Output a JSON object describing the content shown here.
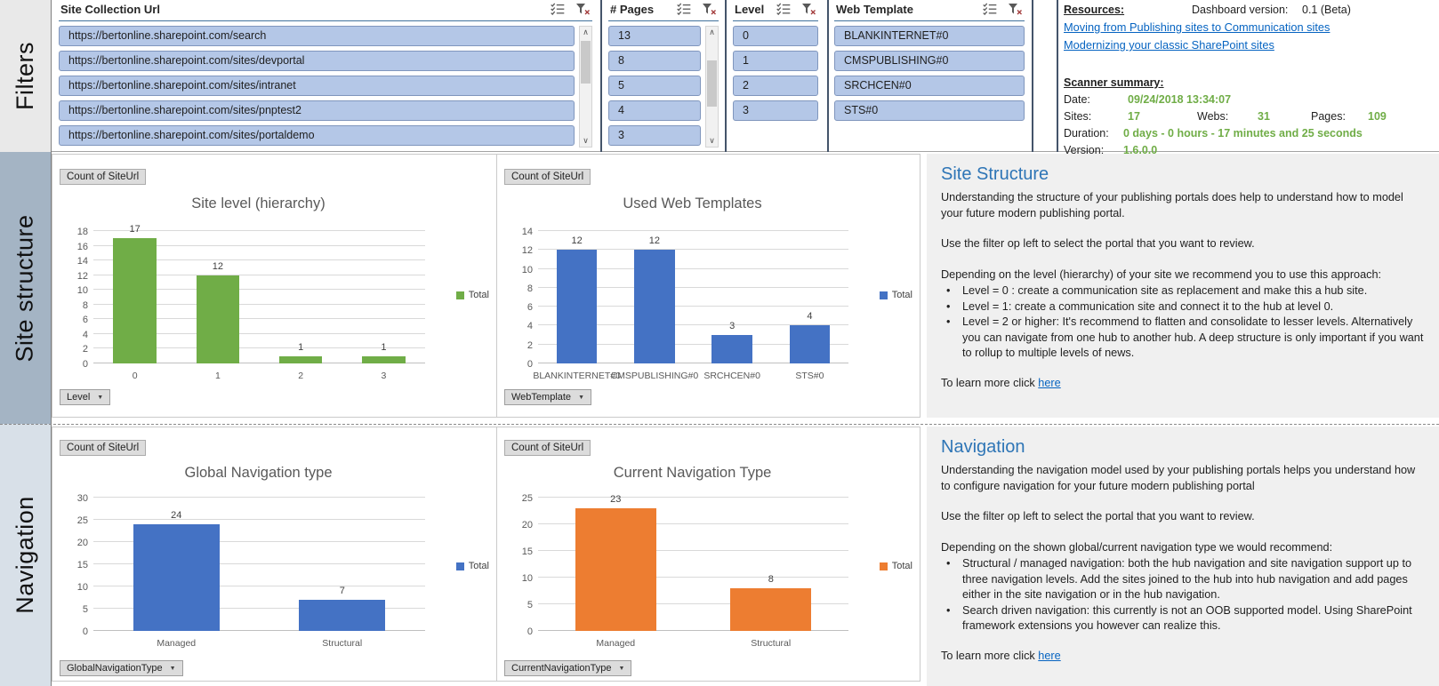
{
  "sidebar": {
    "sections": [
      {
        "label": "Filters"
      },
      {
        "label": "Site structure"
      },
      {
        "label": "Navigation"
      }
    ]
  },
  "filters": {
    "slicers": [
      {
        "title": "Site Collection Url",
        "items": [
          "https://bertonline.sharepoint.com/search",
          "https://bertonline.sharepoint.com/sites/devportal",
          "https://bertonline.sharepoint.com/sites/intranet",
          "https://bertonline.sharepoint.com/sites/pnptest2",
          "https://bertonline.sharepoint.com/sites/portaldemo"
        ],
        "scrollbar": true
      },
      {
        "title": "# Pages",
        "items": [
          "13",
          "8",
          "5",
          "4",
          "3"
        ],
        "scrollbar": true
      },
      {
        "title": "Level",
        "items": [
          "0",
          "1",
          "2",
          "3"
        ],
        "scrollbar": false
      },
      {
        "title": "Web Template",
        "items": [
          "BLANKINTERNET#0",
          "CMSPUBLISHING#0",
          "SRCHCEN#0",
          "STS#0"
        ],
        "scrollbar": false
      }
    ]
  },
  "resources": {
    "heading": "Resources:",
    "dashboard_version_label": "Dashboard version:",
    "dashboard_version": "0.1 (Beta)",
    "links": [
      "Moving from Publishing sites to Communication sites",
      "Modernizing your classic SharePoint sites"
    ],
    "scanner_heading": "Scanner summary:",
    "date_label": "Date:",
    "date": "09/24/2018 13:34:07",
    "sites_label": "Sites:",
    "sites": "17",
    "webs_label": "Webs:",
    "webs": "31",
    "pages_label": "Pages:",
    "pages": "109",
    "duration_label": "Duration:",
    "duration": "0 days - 0 hours - 17 minutes and 25 seconds",
    "version_label": "Version:",
    "version": "1.6.0.0"
  },
  "chart_data": [
    {
      "type": "bar",
      "title": "Site level (hierarchy)",
      "categories": [
        "0",
        "1",
        "2",
        "3"
      ],
      "values": [
        17,
        12,
        1,
        1
      ],
      "color": "#70ad47",
      "ylim": [
        0,
        18
      ],
      "ytick": 2,
      "legend": "Total",
      "legend_position": "right",
      "grid": true,
      "measure_button": "Count of SiteUrl",
      "field_button": "Level"
    },
    {
      "type": "bar",
      "title": "Used Web Templates",
      "categories": [
        "BLANKINTERNET#0",
        "CMSPUBLISHING#0",
        "SRCHCEN#0",
        "STS#0"
      ],
      "values": [
        12,
        12,
        3,
        4
      ],
      "color": "#4472c4",
      "ylim": [
        0,
        14
      ],
      "ytick": 2,
      "legend": "Total",
      "legend_position": "right",
      "grid": true,
      "measure_button": "Count of SiteUrl",
      "field_button": "WebTemplate"
    },
    {
      "type": "bar",
      "title": "Global Navigation type",
      "categories": [
        "Managed",
        "Structural"
      ],
      "values": [
        24,
        7
      ],
      "color": "#4472c4",
      "ylim": [
        0,
        30
      ],
      "ytick": 5,
      "legend": "Total",
      "legend_position": "right",
      "grid": true,
      "measure_button": "Count of SiteUrl",
      "field_button": "GlobalNavigationType"
    },
    {
      "type": "bar",
      "title": "Current Navigation Type",
      "categories": [
        "Managed",
        "Structural"
      ],
      "values": [
        23,
        8
      ],
      "color": "#ed7d31",
      "ylim": [
        0,
        25
      ],
      "ytick": 5,
      "legend": "Total",
      "legend_position": "right",
      "grid": true,
      "measure_button": "Count of SiteUrl",
      "field_button": "CurrentNavigationType"
    }
  ],
  "panels": [
    {
      "title": "Site Structure",
      "blocks": [
        {
          "type": "p",
          "text": "Understanding the structure of your publishing portals does help to understand how to model your future modern publishing portal."
        },
        {
          "type": "p",
          "text": "Use the filter op left to select the portal that you want to review."
        },
        {
          "type": "p",
          "tight": true,
          "text": "Depending on the level (hierarchy) of your site we recommend you to use this approach:"
        },
        {
          "type": "bullets",
          "items": [
            "Level = 0 : create a communication site as replacement and make this a hub site.",
            "Level = 1: create a communication site and connect it to the hub at level 0.",
            "Level = 2 or higher: It's recommend to flatten and consolidate to lesser levels. Alternatively you can navigate from one hub to another hub. A deep structure is only important if you want to rollup to multiple levels of news."
          ]
        }
      ],
      "footer_text": "To learn more click ",
      "footer_link": "here"
    },
    {
      "title": "Navigation",
      "blocks": [
        {
          "type": "p",
          "text": "Understanding the navigation model used by your publishing portals helps you understand how to configure navigation for your future modern publishing portal"
        },
        {
          "type": "p",
          "text": "Use the filter op left to select the portal that you want to review."
        },
        {
          "type": "p",
          "tight": true,
          "text": "Depending on the shown global/current navigation type we would recommend:"
        },
        {
          "type": "bullets",
          "items": [
            "Structural / managed navigation: both the hub navigation and site navigation support up to three navigation levels. Add the sites joined to the hub into hub navigation and add pages either in the site navigation or in the hub navigation.",
            "Search driven navigation: this currently is not an OOB supported model. Using SharePoint framework extensions you however can realize this."
          ]
        }
      ],
      "footer_text": "To learn more click ",
      "footer_link": "here"
    }
  ],
  "icons": {
    "slicer_multi_select": "multi-select-icon",
    "slicer_clear_filter": "clear-filter-icon",
    "dropdown_arrow": "▼",
    "scroll_up": "∧",
    "scroll_down": "∨"
  },
  "colors": {
    "bar_green": "#70ad47",
    "bar_blue": "#4472c4",
    "bar_orange": "#ed7d31",
    "heading_blue": "#2e75b6",
    "link_blue": "#0563c1",
    "summary_green": "#70ad47",
    "slicer_item_fill": "#b4c7e7",
    "separator_navy": "#44546a"
  }
}
